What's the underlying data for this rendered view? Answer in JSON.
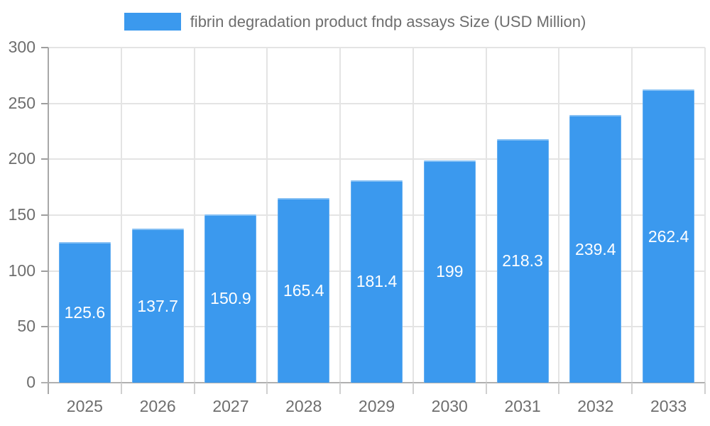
{
  "chart_data": {
    "type": "bar",
    "title": "fibrin degradation product fndp assays Size (USD Million)",
    "legend": {
      "label": "fibrin degradation product fndp assays Size (USD Million)",
      "position": "top-center"
    },
    "categories": [
      "2025",
      "2026",
      "2027",
      "2028",
      "2029",
      "2030",
      "2031",
      "2032",
      "2033"
    ],
    "series": [
      {
        "name": "fibrin degradation product fndp assays Size (USD Million)",
        "values": [
          125.6,
          137.7,
          150.9,
          165.4,
          181.4,
          199,
          218.3,
          239.4,
          262.4
        ],
        "value_labels": [
          "125.6",
          "137.7",
          "150.9",
          "165.4",
          "181.4",
          "199",
          "218.3",
          "239.4",
          "262.4"
        ]
      }
    ],
    "xlabel": "",
    "ylabel": "",
    "ylim": [
      0,
      300
    ],
    "yticks": [
      0,
      50,
      100,
      150,
      200,
      250,
      300
    ],
    "ytick_labels": [
      "0",
      "50",
      "100",
      "150",
      "200",
      "250",
      "300"
    ],
    "grid": "on",
    "value_label_position": "inside-center",
    "colors": {
      "bar": "#3b99ee",
      "value_label": "#ffffff",
      "axis_text": "#6e6e6e",
      "gridline": "#e4e4e4",
      "axis_line": "#a8a8a8"
    }
  }
}
